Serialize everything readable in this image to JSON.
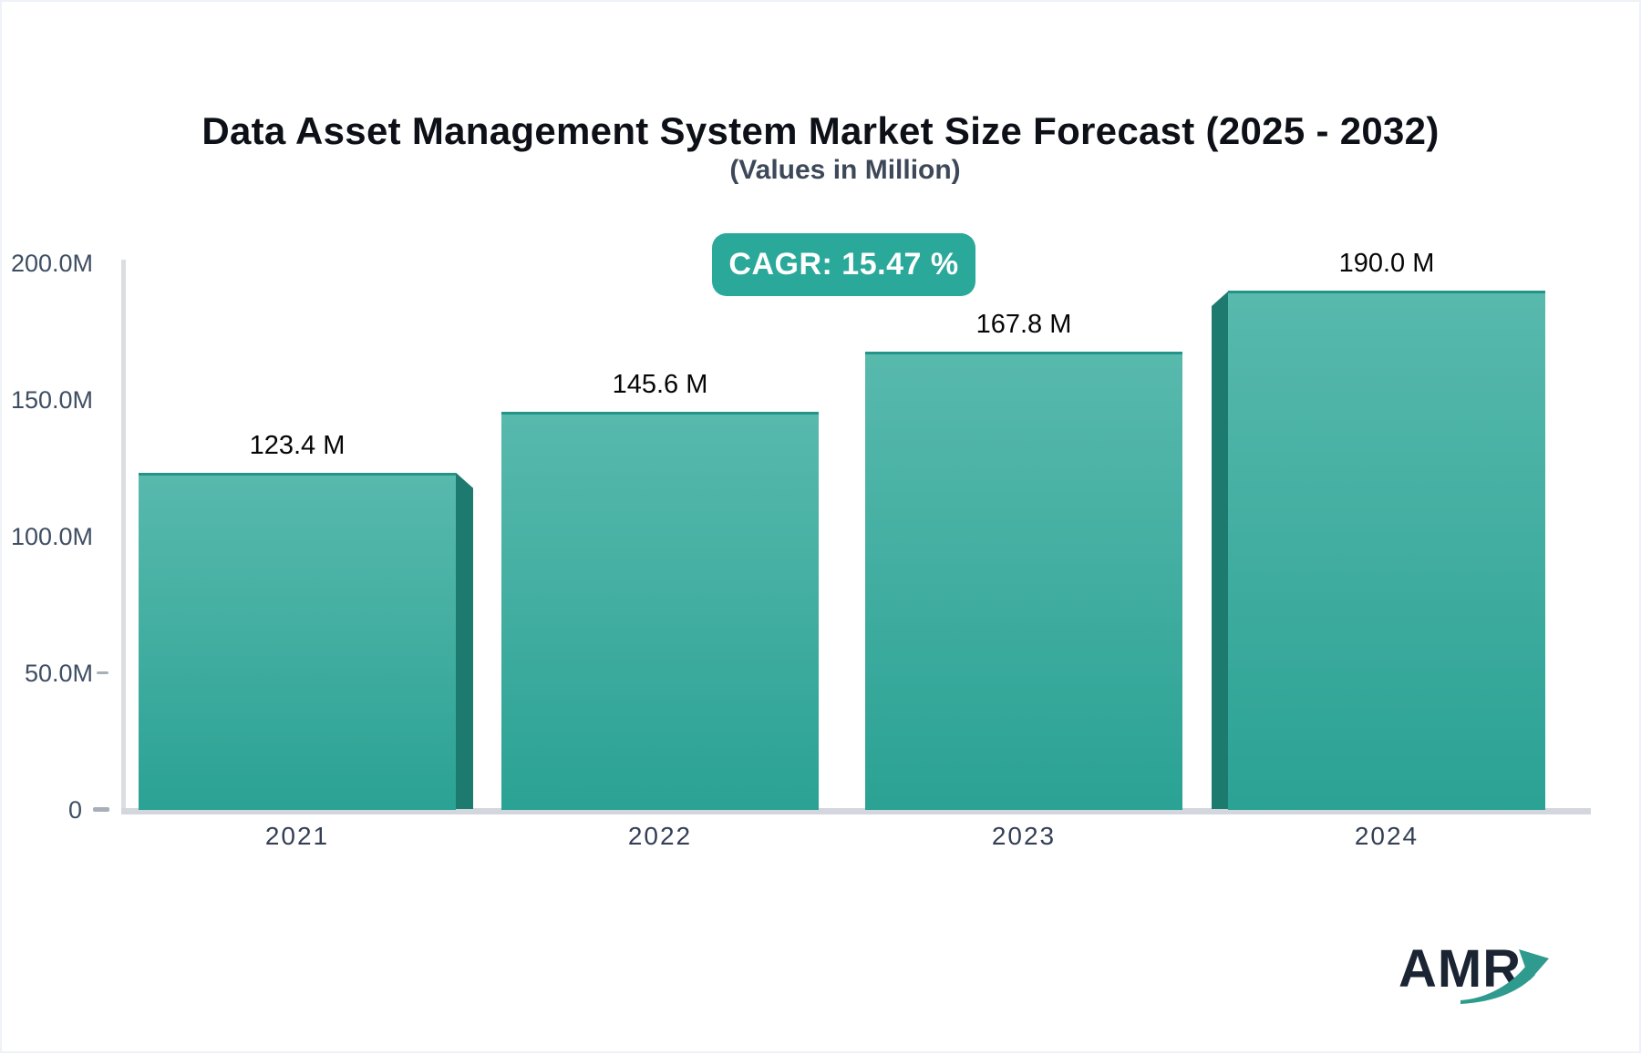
{
  "header": {
    "title": "Data Asset Management System Market Size Forecast (2025 - 2032)",
    "subtitle": "(Values in Million)",
    "cagr_label": "CAGR: 15.47 %"
  },
  "chart_data": {
    "type": "bar",
    "title": "Data Asset Management System Market Size Forecast (2025 - 2032)",
    "subtitle": "(Values in Million)",
    "annotation": "CAGR: 15.47 %",
    "categories": [
      "2021",
      "2022",
      "2023",
      "2024"
    ],
    "values": [
      123.4,
      145.6,
      167.8,
      190.0
    ],
    "value_labels": [
      "123.4 M",
      "145.6 M",
      "167.8 M",
      "190.0 M"
    ],
    "ylim": [
      0,
      200
    ],
    "y_axis": [
      {
        "label": "200.0M",
        "value": 200
      },
      {
        "label": "150.0M",
        "value": 150
      },
      {
        "label": "100.0M",
        "value": 100
      },
      {
        "label": "50.0M",
        "value": 50,
        "tick": "small"
      },
      {
        "label": "0",
        "value": 0,
        "tick": "dash"
      }
    ],
    "grid": false,
    "legend": false
  },
  "logo": {
    "text": "AMR"
  },
  "colors": {
    "badge_bg": "#2aa89a",
    "bar_top": "#58b9ad",
    "bar_bottom": "#2aa294",
    "bar_side": "#1d7a6e",
    "axis_line": "#d3d7dd",
    "tick_label": "#3f4e63",
    "title_text": "#0d1016",
    "logo_text": "#1a2432",
    "logo_arrow": "#2f9a8e"
  }
}
